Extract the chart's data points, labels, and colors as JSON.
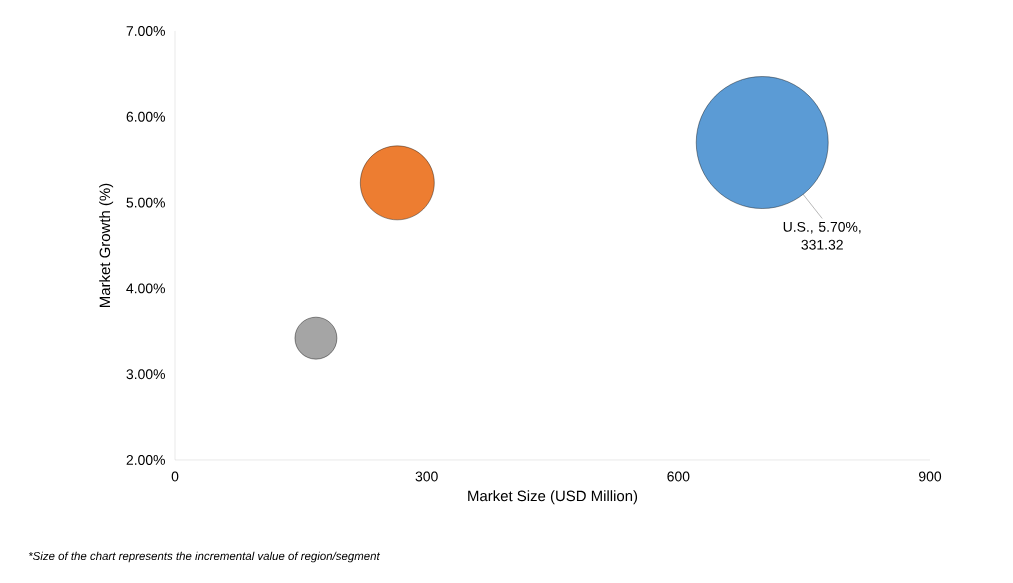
{
  "chart_data": {
    "type": "bubble",
    "xlabel": "Market Size (USD Million)",
    "ylabel": "Market Growth (%)",
    "x": [
      168,
      265,
      700
    ],
    "values": [
      3.42,
      5.23,
      5.7
    ],
    "sizes": [
      0.101,
      0.314,
      1
    ],
    "colors": [
      "#a5a5a5",
      "#ed7d31",
      "#5b9bd5"
    ],
    "xlim": [
      0,
      900
    ],
    "xticks": [
      0,
      300,
      600,
      900
    ],
    "ylim": [
      2,
      7
    ],
    "yticks": [
      {
        "value": 2,
        "label": "2.00%"
      },
      {
        "value": 3,
        "label": "3.00%"
      },
      {
        "value": 4,
        "label": "4.00%"
      },
      {
        "value": 5,
        "label": "5.00%"
      },
      {
        "value": 6,
        "label": "6.00%"
      },
      {
        "value": 7,
        "label": "7.00%"
      }
    ],
    "grid": false,
    "annotations": [
      "*Size of the chart represents the incremental value of region/segment",
      {
        "text": "U.S., 5.70%, 331.32",
        "x": 700,
        "y": 5.7
      }
    ]
  }
}
